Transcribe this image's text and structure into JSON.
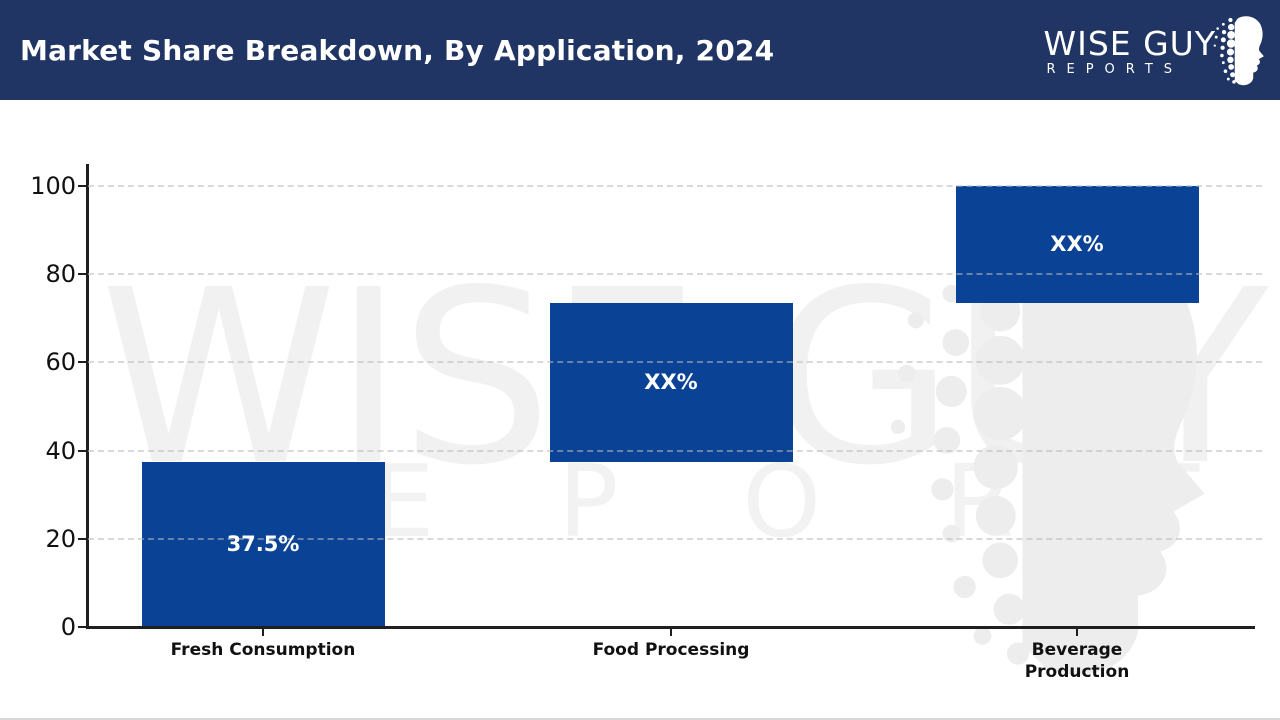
{
  "header": {
    "title": "Market Share Breakdown, By Application, 2024",
    "logo": {
      "brand": "WISE GUY",
      "sub": "REPORTS"
    }
  },
  "watermark": {
    "brand": "WISE GUY",
    "sub": "R E P O R T S"
  },
  "colors": {
    "header_bg": "#203564",
    "bar": "#0a4296",
    "axis": "#1f1f1f",
    "watermark_text": "#f1f1f1",
    "grid": "#b9b9b9"
  },
  "chart_data": {
    "type": "bar",
    "subtype": "waterfall",
    "title": "Market Share Breakdown, By Application, 2024",
    "categories": [
      "Fresh Consumption",
      "Food Processing",
      "Beverage Production"
    ],
    "xtick_labels": [
      "Fresh Consumption",
      "Food Processing",
      "Beverage\nProduction"
    ],
    "segments": [
      {
        "category": "Fresh Consumption",
        "start": 0,
        "end": 37.5,
        "value_label": "37.5%"
      },
      {
        "category": "Food Processing",
        "start": 37.5,
        "end": 73.5,
        "value_label": "XX%"
      },
      {
        "category": "Beverage Production",
        "start": 73.5,
        "end": 100,
        "value_label": "XX%"
      }
    ],
    "yticks": [
      0,
      20,
      40,
      60,
      80,
      100
    ],
    "ylim": [
      0,
      105
    ],
    "grid": "horizontal dashed",
    "legend": "none",
    "bar_color": "#0a4296"
  }
}
